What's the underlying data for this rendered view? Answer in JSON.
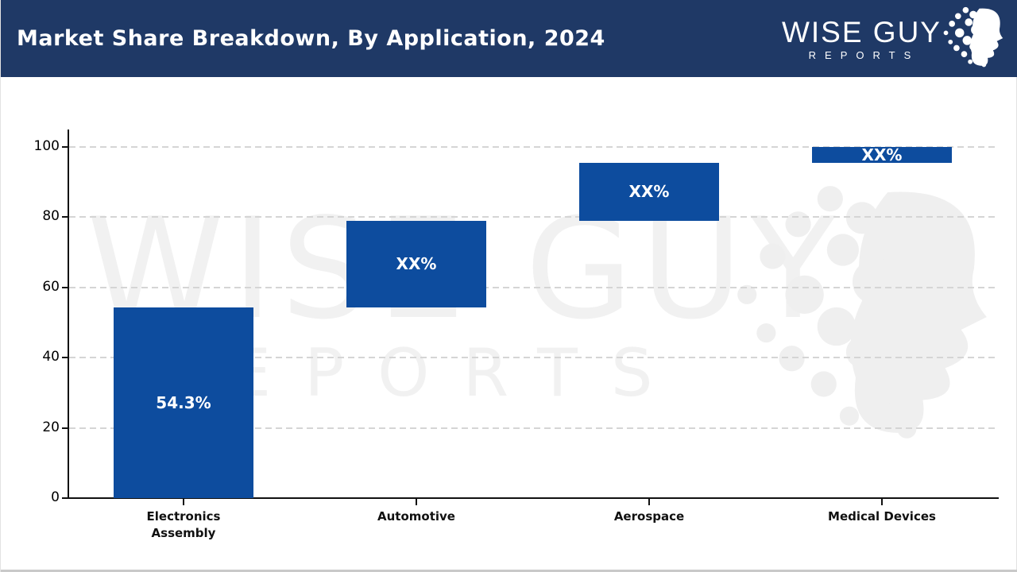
{
  "header": {
    "title": "Market Share Breakdown, By Application, 2024",
    "brand": {
      "line1": "WISE GUY",
      "line2": "REPORTS"
    }
  },
  "watermark": {
    "line1": "WISE GUY",
    "line2": "REPORTS"
  },
  "chart_data": {
    "type": "bar",
    "subtype": "waterfall",
    "title": "Market Share Breakdown, By Application, 2024",
    "xlabel": "",
    "ylabel": "",
    "ylim": [
      0,
      105
    ],
    "yticks": [
      0,
      20,
      40,
      60,
      80,
      100
    ],
    "grid": "horizontal-dashed",
    "bar_color": "#0d4c9e",
    "categories": [
      "Electronics Assembly",
      "Automotive",
      "Aerospace",
      "Medical Devices"
    ],
    "segments": [
      {
        "category": "Electronics Assembly",
        "start": 0,
        "end": 54.3,
        "value": 54.3,
        "value_label": "54.3%"
      },
      {
        "category": "Automotive",
        "start": 54.3,
        "end": 79.0,
        "value": 24.7,
        "value_label": "XX%"
      },
      {
        "category": "Aerospace",
        "start": 79.0,
        "end": 95.5,
        "value": 16.5,
        "value_label": "XX%"
      },
      {
        "category": "Medical Devices",
        "start": 95.5,
        "end": 100,
        "value": 4.5,
        "value_label": "XX%"
      }
    ]
  }
}
